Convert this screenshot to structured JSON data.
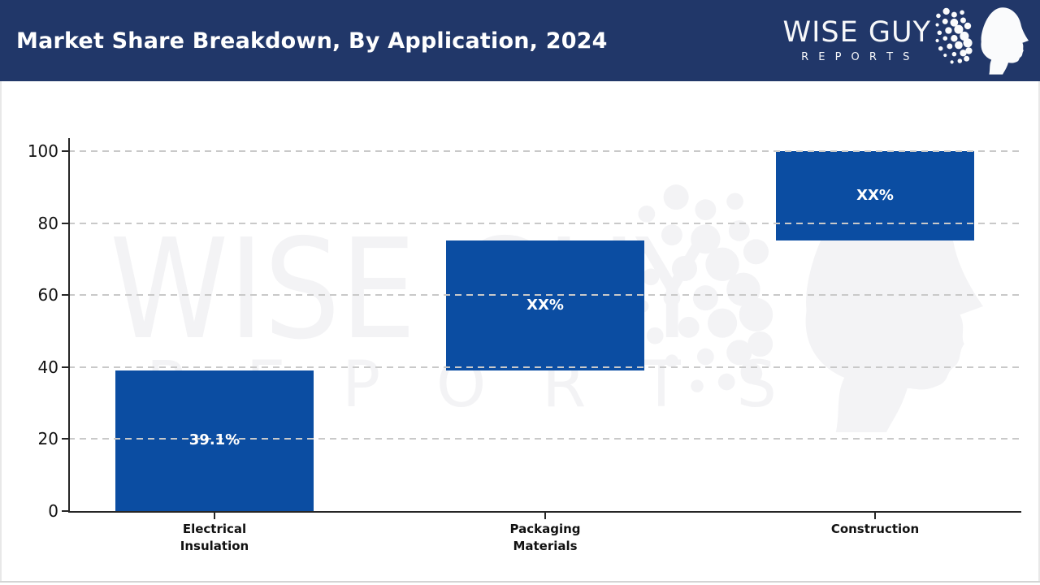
{
  "header": {
    "title": "Market Share Breakdown, By Application, 2024",
    "logo": {
      "name": "WISE GUY",
      "sub": "R E P O R T S"
    }
  },
  "watermark": {
    "big": "WISE GUY",
    "sub": "R E P O R T S"
  },
  "colors": {
    "header_bg": "#213769",
    "bar": "#0b4da2",
    "bar_label": "#ffffff",
    "grid": "#c9c9c9",
    "axis": "#262626",
    "tick_label": "#111111",
    "watermark": "#f3f3f5"
  },
  "chart_data": {
    "type": "bar",
    "subtype": "waterfall",
    "title": "Market Share Breakdown, By Application, 2024",
    "categories": [
      {
        "lines": [
          "Electrical",
          "Insulation"
        ]
      },
      {
        "lines": [
          "Packaging",
          "Materials"
        ]
      },
      {
        "lines": [
          "Construction"
        ]
      }
    ],
    "bars": [
      {
        "label": "39.1%",
        "start": 0,
        "end": 39.1
      },
      {
        "label": "XX%",
        "start": 39.1,
        "end": 75.1
      },
      {
        "label": "XX%",
        "start": 75.1,
        "end": 100
      }
    ],
    "xlabel": "",
    "ylabel": "",
    "ylim": [
      0,
      100
    ],
    "yticks": [
      0,
      20,
      40,
      60,
      80,
      100
    ],
    "grid": "horizontal-dashed-above-bars",
    "legend": "none"
  }
}
